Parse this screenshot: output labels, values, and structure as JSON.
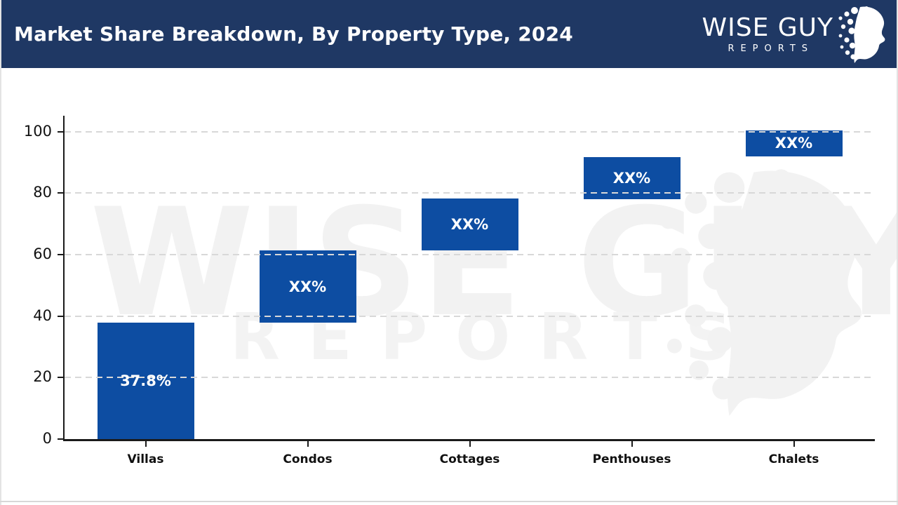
{
  "header": {
    "title": "Market Share Breakdown, By Property Type, 2024",
    "bg_color": "#1f3864",
    "logo": {
      "line1": "WISE GUY",
      "line2": "REPORTS"
    }
  },
  "watermark": {
    "line1": "WISE GUY",
    "line2": "REPORTS"
  },
  "chart_data": {
    "type": "bar",
    "subtype": "waterfall",
    "title": "Market Share Breakdown, By Property Type, 2024",
    "categories": [
      "Villas",
      "Condos",
      "Cottages",
      "Penthouses",
      "Chalets"
    ],
    "segments": [
      {
        "category": "Villas",
        "start": 0,
        "end": 37.8,
        "label": "37.8%"
      },
      {
        "category": "Condos",
        "start": 37.8,
        "end": 61.3,
        "label": "XX%"
      },
      {
        "category": "Cottages",
        "start": 61.3,
        "end": 78.3,
        "label": "XX%"
      },
      {
        "category": "Penthouses",
        "start": 78.0,
        "end": 91.8,
        "label": "XX%"
      },
      {
        "category": "Chalets",
        "start": 92.0,
        "end": 100.4,
        "label": "XX%"
      }
    ],
    "xlabel": "",
    "ylabel": "",
    "yticks": [
      0,
      20,
      40,
      60,
      80,
      100
    ],
    "ylim": [
      0,
      105.2
    ],
    "grid": "horizontal dashed, drawn above bars",
    "grid_color": "#d8d8d8",
    "axis_color": "#1a1a1a",
    "bar_color": "#0d4da2",
    "bar_label_color": "#ffffff",
    "legend": "none"
  }
}
